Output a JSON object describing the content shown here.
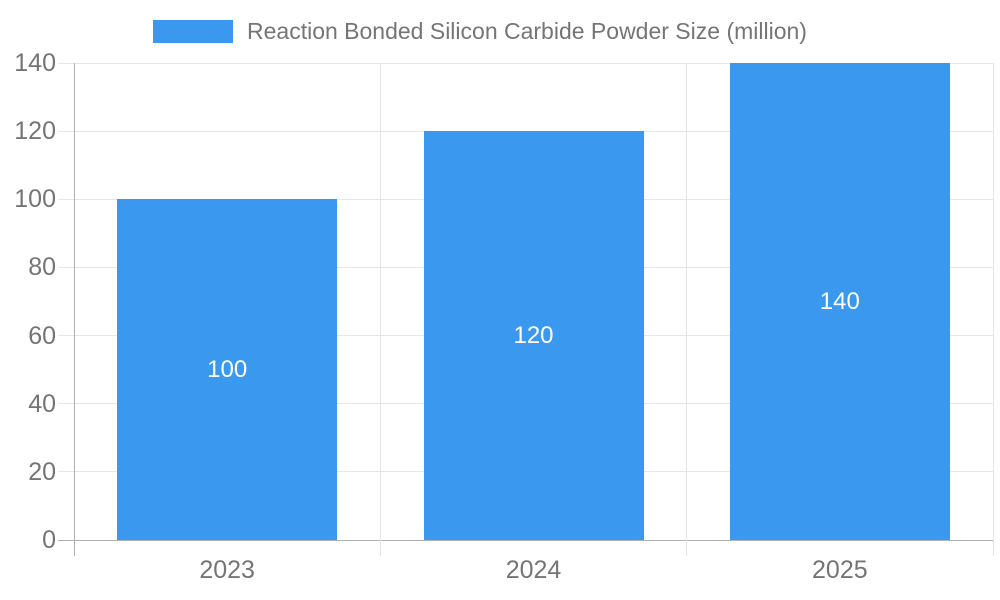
{
  "colors": {
    "bar": "#3a99ee",
    "grid": "#e6e6e6",
    "axis": "#b0b0b0",
    "text": "#757575",
    "bar_label": "#ffffff",
    "background": "#ffffff"
  },
  "chart_data": {
    "type": "bar",
    "categories": [
      "2023",
      "2024",
      "2025"
    ],
    "values": [
      100,
      120,
      140
    ],
    "bar_labels": [
      "100",
      "120",
      "140"
    ],
    "title": "Reaction Bonded Silicon Carbide Powder Size (million)",
    "xlabel": "",
    "ylabel": "",
    "ylim": [
      0,
      140
    ],
    "yticks": [
      0,
      20,
      40,
      60,
      80,
      100,
      120,
      140
    ],
    "grid": true,
    "legend": {
      "position": "top",
      "entries": [
        "Reaction Bonded Silicon Carbide Powder Size (million)"
      ]
    }
  }
}
